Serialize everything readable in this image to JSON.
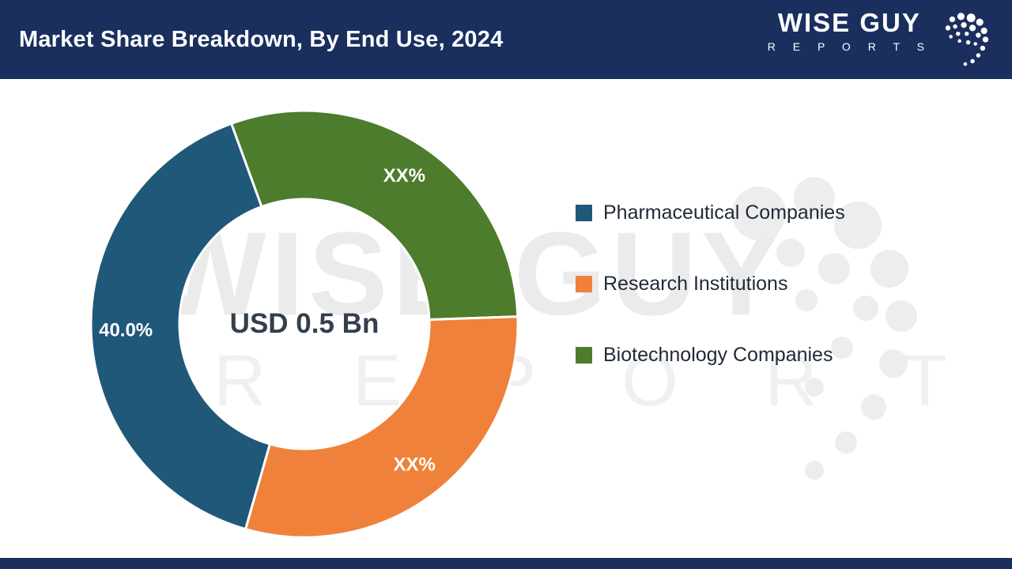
{
  "header": {
    "title": "Market Share Breakdown, By End Use, 2024",
    "bg_color": "#1a2f5e",
    "logo": {
      "line1": "WISE GUY",
      "line2": "R E P O R T S"
    }
  },
  "watermark": {
    "line1": "WISE GUY",
    "line2": "R E P O R T S"
  },
  "chart_data": {
    "type": "pie",
    "donut": true,
    "title": "Market Share Breakdown, By End Use, 2024",
    "center_label": "USD 0.5 Bn",
    "start_angle": 196,
    "segments": [
      {
        "name": "Pharmaceutical Companies",
        "value": 40,
        "label": "40.0%",
        "color": "#20587a"
      },
      {
        "name": "Biotechnology Companies",
        "value": 30,
        "label": "XX%",
        "color": "#4d7c2c"
      },
      {
        "name": "Research Institutions",
        "value": 30,
        "label": "XX%",
        "color": "#f0813a"
      }
    ],
    "legend": [
      {
        "label": "Pharmaceutical Companies",
        "color": "#20587a"
      },
      {
        "label": "Research Institutions",
        "color": "#f0813a"
      },
      {
        "label": "Biotechnology Companies",
        "color": "#4d7c2c"
      }
    ],
    "legend_position": "right"
  }
}
